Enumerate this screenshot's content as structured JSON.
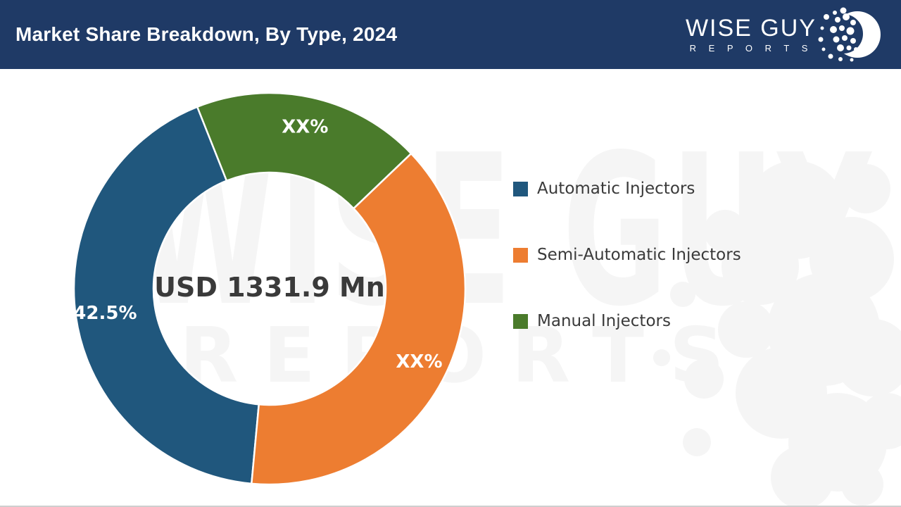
{
  "header": {
    "title": "Market Share Breakdown, By Type, 2024",
    "background": "#1F3A66",
    "logo": {
      "line1": "WISE GUY",
      "line2": "R E P O R T S"
    }
  },
  "watermark": {
    "line1": "WISE GUY",
    "line2": "REPORTS"
  },
  "chart_data": {
    "type": "pie",
    "subtype": "donut",
    "title": "Market Share Breakdown, By Type, 2024",
    "center_label": "USD 1331.9 Mn",
    "start_angle_deg": 185.3,
    "legend_position": "right",
    "segments": [
      {
        "name": "Automatic Injectors",
        "value": 42.5,
        "label": "42.5%",
        "color": "#20577D"
      },
      {
        "name": "Manual Injectors",
        "value": 18.9,
        "label": "XX%",
        "color": "#4A7B2B"
      },
      {
        "name": "Semi-Automatic Injectors",
        "value": 38.6,
        "label": "XX%",
        "color": "#ED7D31"
      }
    ]
  }
}
